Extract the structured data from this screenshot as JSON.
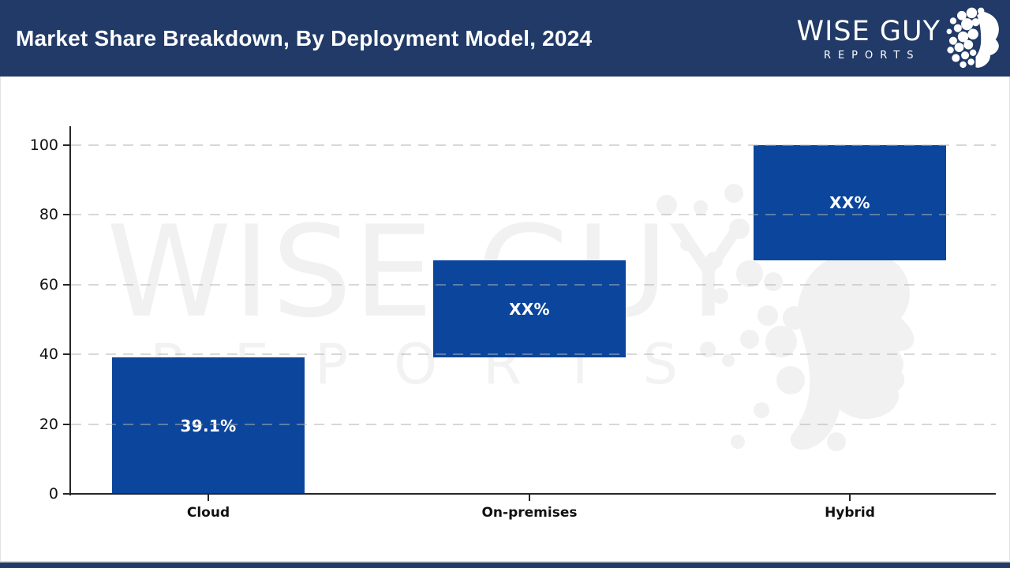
{
  "header": {
    "title": "Market Share Breakdown, By Deployment Model, 2024",
    "logo": {
      "brand_line1": "WISE GUY",
      "brand_line2": "REPORTS"
    }
  },
  "chart_data": {
    "type": "bar",
    "subtype": "floating-waterfall",
    "title": "Market Share Breakdown, By Deployment Model, 2024",
    "categories": [
      "Cloud",
      "On-premises",
      "Hybrid"
    ],
    "bars": [
      {
        "category": "Cloud",
        "start": 0,
        "end": 39.1,
        "label": "39.1%"
      },
      {
        "category": "On-premises",
        "start": 39.1,
        "end": 66.9,
        "label": "XX%"
      },
      {
        "category": "Hybrid",
        "start": 66.9,
        "end": 100,
        "label": "XX%"
      }
    ],
    "xlabel": "",
    "ylabel": "",
    "ylim": [
      0,
      105
    ],
    "yticks": [
      0,
      20,
      40,
      60,
      80,
      100
    ],
    "grid": "horizontal-dashed",
    "legend": "none"
  },
  "watermark": {
    "line1": "WISE GUY",
    "line2": "REPORTS"
  },
  "colors": {
    "header_bg": "#213a67",
    "footer_bg": "#213a67",
    "bar": "#0b459c",
    "axis": "#262626",
    "grid": "#b2b2b2",
    "title_text": "#ffffff",
    "label_text": "#111111",
    "bar_label_text": "#ffffff",
    "watermark": "#f1f1f1"
  }
}
